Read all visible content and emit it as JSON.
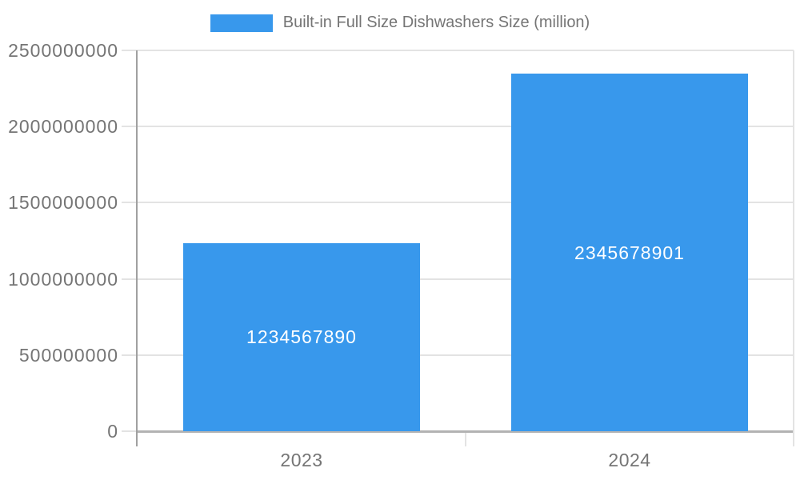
{
  "legend": {
    "label": "Built-in Full Size Dishwashers Size (million)"
  },
  "chart_data": {
    "type": "bar",
    "title": "",
    "categories": [
      "2023",
      "2024"
    ],
    "series": [
      {
        "name": "Built-in Full Size Dishwashers Size (million)",
        "values": [
          1234567890,
          2345678901
        ]
      }
    ],
    "value_labels": [
      "1234567890",
      "2345678901"
    ],
    "xlabel": "",
    "ylabel": "",
    "ylim": [
      0,
      2500000000
    ],
    "yticks": [
      0,
      500000000,
      1000000000,
      1500000000,
      2000000000,
      2500000000
    ],
    "ytick_labels": [
      "0",
      "500000000",
      "1000000000",
      "1500000000",
      "2000000000",
      "2500000000"
    ],
    "grid": true,
    "legend_position": "top"
  },
  "colors": {
    "bar": "#3898EC",
    "axis_text": "#757575",
    "value_label_text": "#ffffff",
    "gridline": "#e3e3e3",
    "baseline": "#b3b3b3",
    "axis_line": "#a0a0a0",
    "plot_border": "#e3e3e3"
  }
}
